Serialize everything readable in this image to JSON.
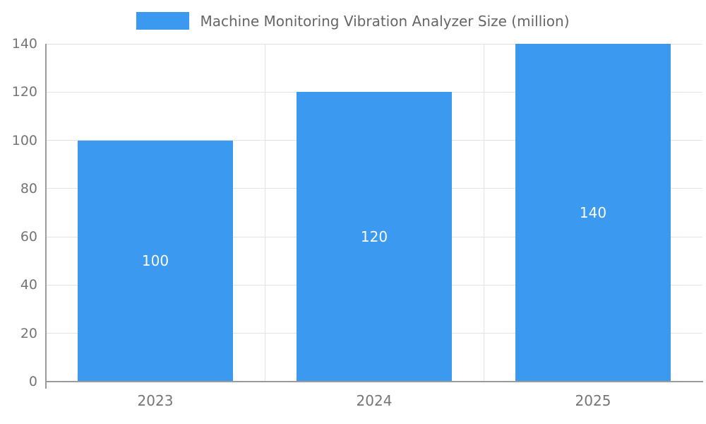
{
  "chart_data": {
    "type": "bar",
    "title": "Machine Monitoring Vibration Analyzer Size (million)",
    "categories": [
      "2023",
      "2024",
      "2025"
    ],
    "values": [
      100,
      120,
      140
    ],
    "xlabel": "",
    "ylabel": "",
    "ylim": [
      0,
      140
    ],
    "ytick_step": 20,
    "color": "#3b99f0",
    "grid": true,
    "legend_position": "top",
    "bar_labels_inside": true
  },
  "colors": {
    "bar": "#3b99f0",
    "grid": "#e3e3e3",
    "axis": "#9b9b9b",
    "tick_label": "#757575",
    "legend_text": "#666666",
    "bar_label": "#ffffff",
    "background": "#ffffff"
  }
}
